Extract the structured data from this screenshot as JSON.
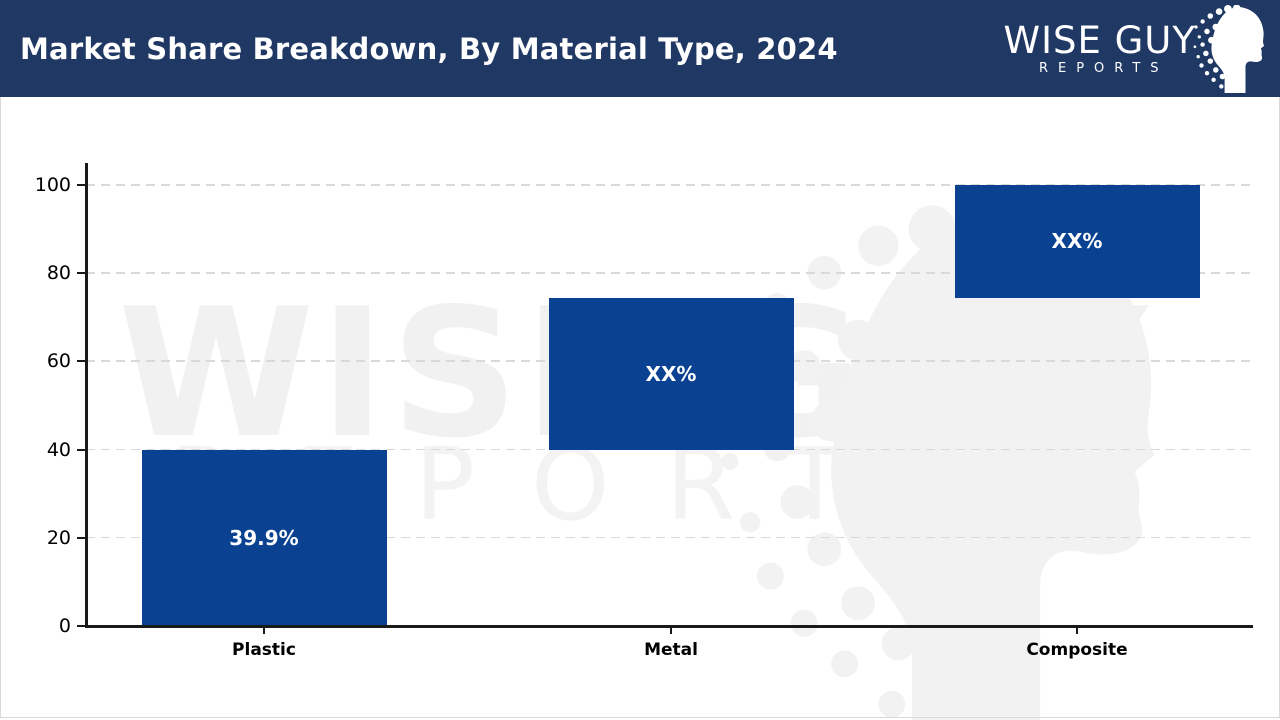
{
  "header": {
    "title": "Market Share Breakdown, By Material Type, 2024",
    "bg_color": "#1f3864",
    "logo": {
      "line1": "WISE GUY",
      "line2": "REPORTS"
    }
  },
  "watermark": {
    "line1": "WISE GUY",
    "line2": "REPORTS"
  },
  "chart_data": {
    "type": "bar",
    "subtype": "waterfall-breakdown",
    "title": "Market Share Breakdown, By Material Type, 2024",
    "categories": [
      "Plastic",
      "Metal",
      "Composite"
    ],
    "bars": [
      {
        "category": "Plastic",
        "start": 0,
        "end": 39.9,
        "value_label": "39.9%"
      },
      {
        "category": "Metal",
        "start": 39.9,
        "end": 74.4,
        "value_label": "XX%"
      },
      {
        "category": "Composite",
        "start": 74.4,
        "end": 100,
        "value_label": "XX%"
      }
    ],
    "yticks": [
      0,
      20,
      40,
      60,
      80,
      100
    ],
    "ylim": [
      0,
      106
    ],
    "xlabel": "",
    "ylabel": "",
    "grid": "horizontal dashed",
    "legend": "none",
    "bar_color": "#0a4191",
    "bar_label_color": "#ffffff",
    "axis_color": "#1a1a1a"
  }
}
